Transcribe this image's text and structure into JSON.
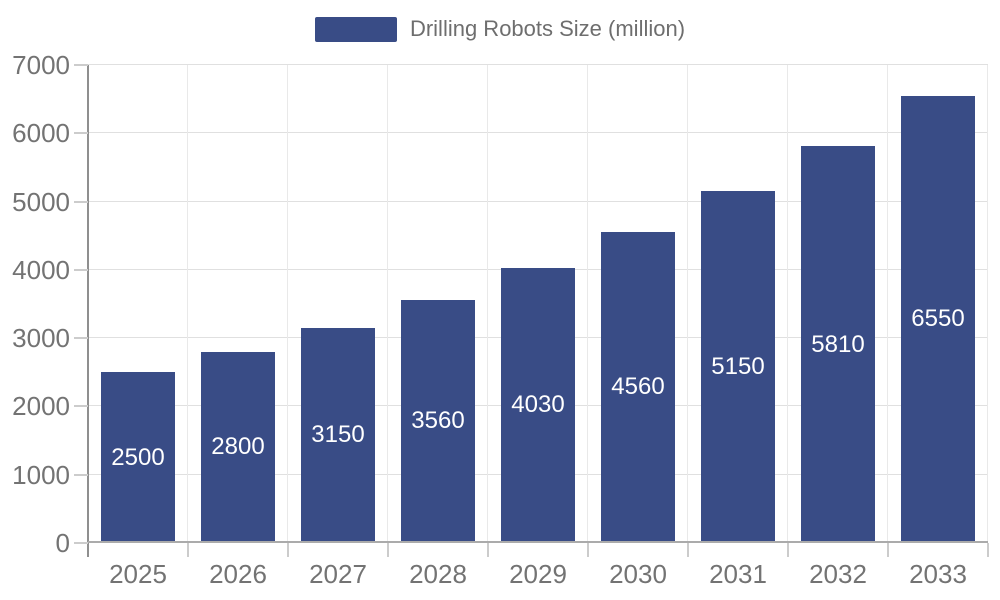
{
  "legend": {
    "label": "Drilling Robots Size (million)"
  },
  "chart_data": {
    "type": "bar",
    "title": "Drilling Robots Size (million)",
    "categories": [
      "2025",
      "2026",
      "2027",
      "2028",
      "2029",
      "2030",
      "2031",
      "2032",
      "2033"
    ],
    "series": [
      {
        "name": "Drilling Robots Size (million)",
        "values": [
          2500,
          2800,
          3150,
          3560,
          4030,
          4560,
          5150,
          5810,
          6550
        ]
      }
    ],
    "xlabel": "",
    "ylabel": "",
    "ylim": [
      0,
      7000
    ],
    "y_ticks": [
      0,
      1000,
      2000,
      3000,
      4000,
      5000,
      6000,
      7000
    ],
    "grid": true,
    "legend_position": "top-center",
    "value_label_position": "inside-center"
  },
  "colors": {
    "bar": "#394c86",
    "grid_line": "#e0e0e0",
    "grid_line_vertical": "#e9e9e9",
    "x_axis_line": "#ababab",
    "y_axis_line": "#8f8f8f",
    "tick_mark": "#cccccc",
    "tick_label": "#737373",
    "legend_text": "#6e6e6e",
    "value_label": "#ffffff",
    "background": "#ffffff"
  }
}
